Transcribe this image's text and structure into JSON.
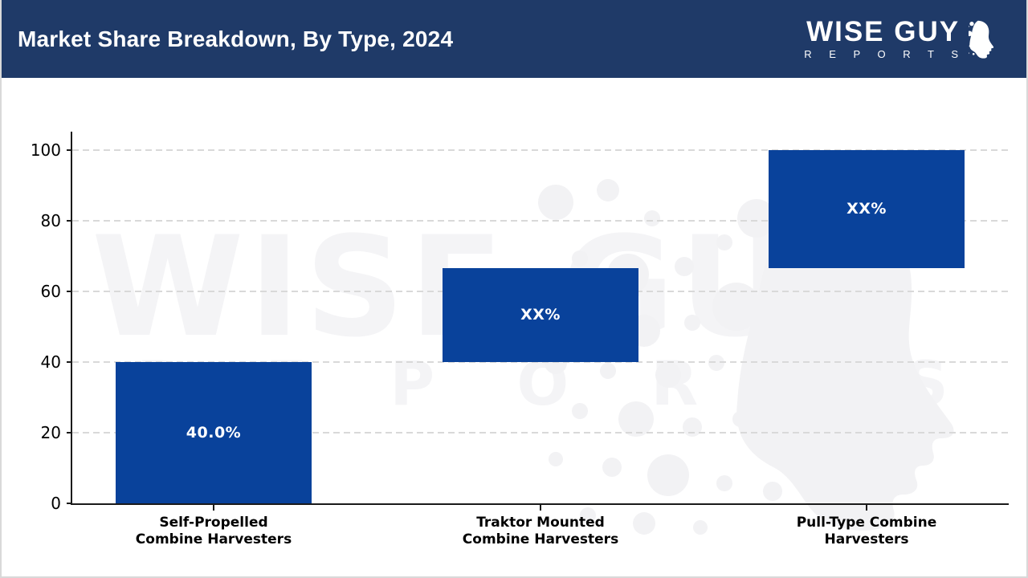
{
  "header": {
    "title": "Market Share Breakdown, By Type, 2024",
    "background_color": "#1f3a68",
    "logo": {
      "line1": "WISE GUY",
      "line2": "R E P O R T S"
    }
  },
  "watermark": {
    "line1": "WISE GUY",
    "line2": "R E P O R T S"
  },
  "chart_data": {
    "type": "bar",
    "subtype": "waterfall-market-share",
    "title": "Market Share Breakdown, By Type, 2024",
    "categories": [
      [
        "Self-Propelled",
        "Combine Harvesters"
      ],
      [
        "Traktor Mounted",
        "Combine Harvesters"
      ],
      [
        "Pull-Type Combine",
        "Harvesters"
      ]
    ],
    "segments": [
      {
        "start": 0,
        "end": 40,
        "label": "40.0%"
      },
      {
        "start": 40,
        "end": 66.7,
        "label": "XX%"
      },
      {
        "start": 66.7,
        "end": 100,
        "label": "XX%"
      }
    ],
    "yticks": [
      0,
      20,
      40,
      60,
      80,
      100
    ],
    "ylim": [
      0,
      105
    ],
    "xlabel": "",
    "ylabel": "",
    "grid": "horizontal-dashed",
    "legend": null,
    "bar_color": "#09429b",
    "grid_color": "#d9d9d9",
    "axis_color": "#1a1a1a",
    "value_label_color": "#ffffff"
  }
}
